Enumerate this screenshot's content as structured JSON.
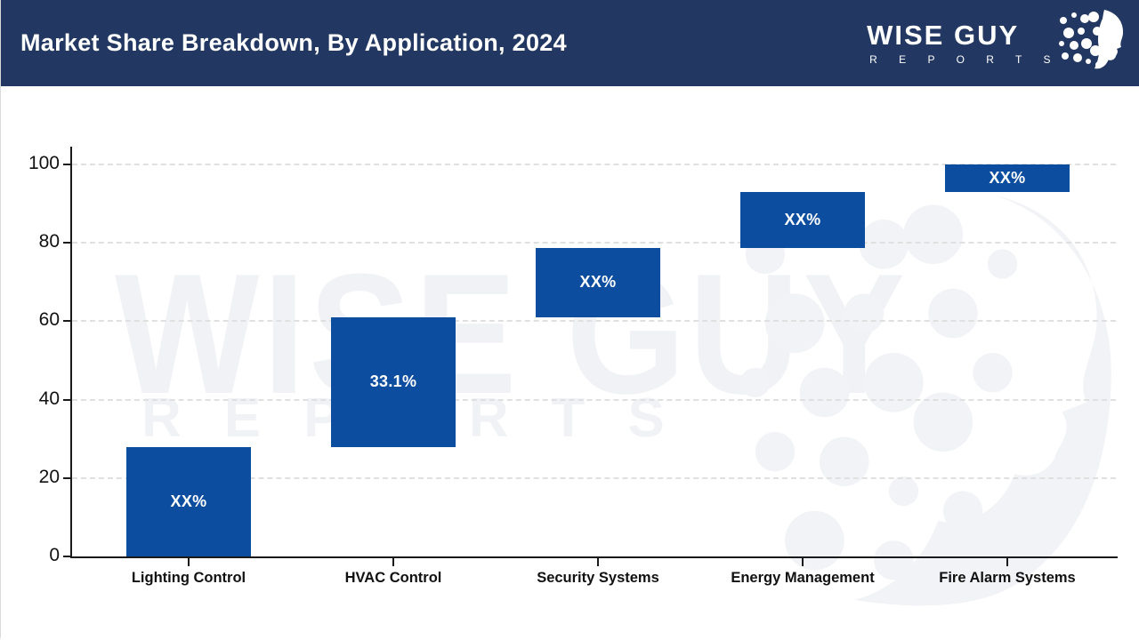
{
  "header": {
    "title": "Market Share Breakdown, By Application, 2024",
    "logo": {
      "line1": "WISE GUY",
      "line2": "REPORTS"
    }
  },
  "watermark": {
    "line1": "WISE GUY",
    "line2": "REPORTS"
  },
  "chart_data": {
    "type": "bar",
    "subtype": "waterfall",
    "title": "Market Share Breakdown, By Application, 2024",
    "categories": [
      "Lighting Control",
      "HVAC Control",
      "Security Systems",
      "Energy Management",
      "Fire Alarm Systems"
    ],
    "bars": [
      {
        "category": "Lighting Control",
        "start": 0,
        "end": 28.0,
        "label": "XX%"
      },
      {
        "category": "HVAC Control",
        "start": 28.0,
        "end": 61.1,
        "label": "33.1%",
        "value": 33.1
      },
      {
        "category": "Security Systems",
        "start": 61.1,
        "end": 78.6,
        "label": "XX%"
      },
      {
        "category": "Energy Management",
        "start": 78.6,
        "end": 93.0,
        "label": "XX%"
      },
      {
        "category": "Fire Alarm Systems",
        "start": 93.0,
        "end": 100.0,
        "label": "XX%"
      }
    ],
    "ylabel": "",
    "xlabel": "",
    "yticks": [
      0,
      20,
      40,
      60,
      80,
      100
    ],
    "ylim": [
      0,
      105
    ],
    "grid": "horizontal-dashed",
    "legend": "none",
    "colors": {
      "bar": "#0d4da0",
      "bar_label": "#ffffff",
      "header_bg": "#223761",
      "axis": "#1a1a1a",
      "grid": "#e0e0e0",
      "watermark": "#f1f2f5"
    }
  }
}
